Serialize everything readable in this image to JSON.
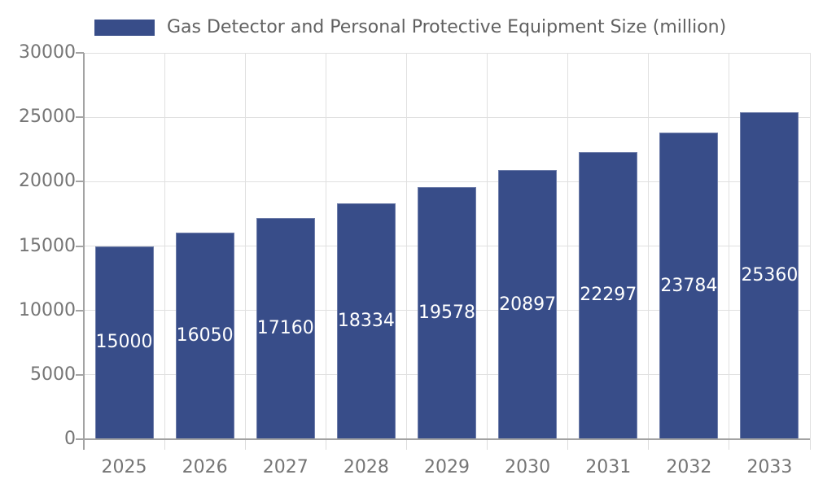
{
  "legend": {
    "label": "Gas Detector and Personal Protective Equipment Size (million)"
  },
  "chart_data": {
    "type": "bar",
    "title": "Gas Detector and Personal Protective Equipment Size (million)",
    "categories": [
      "2025",
      "2026",
      "2027",
      "2028",
      "2029",
      "2030",
      "2031",
      "2032",
      "2033"
    ],
    "values": [
      15000,
      16050,
      17160,
      18334,
      19578,
      20897,
      22297,
      23784,
      25360
    ],
    "xlabel": "",
    "ylabel": "",
    "ylim": [
      0,
      30000
    ],
    "yticks": [
      0,
      5000,
      10000,
      15000,
      20000,
      25000,
      30000
    ],
    "grid": true,
    "legend_position": "top-left",
    "bar_color": "#384d89",
    "value_label_color": "#ffffff",
    "axis_text_color": "#757575"
  }
}
